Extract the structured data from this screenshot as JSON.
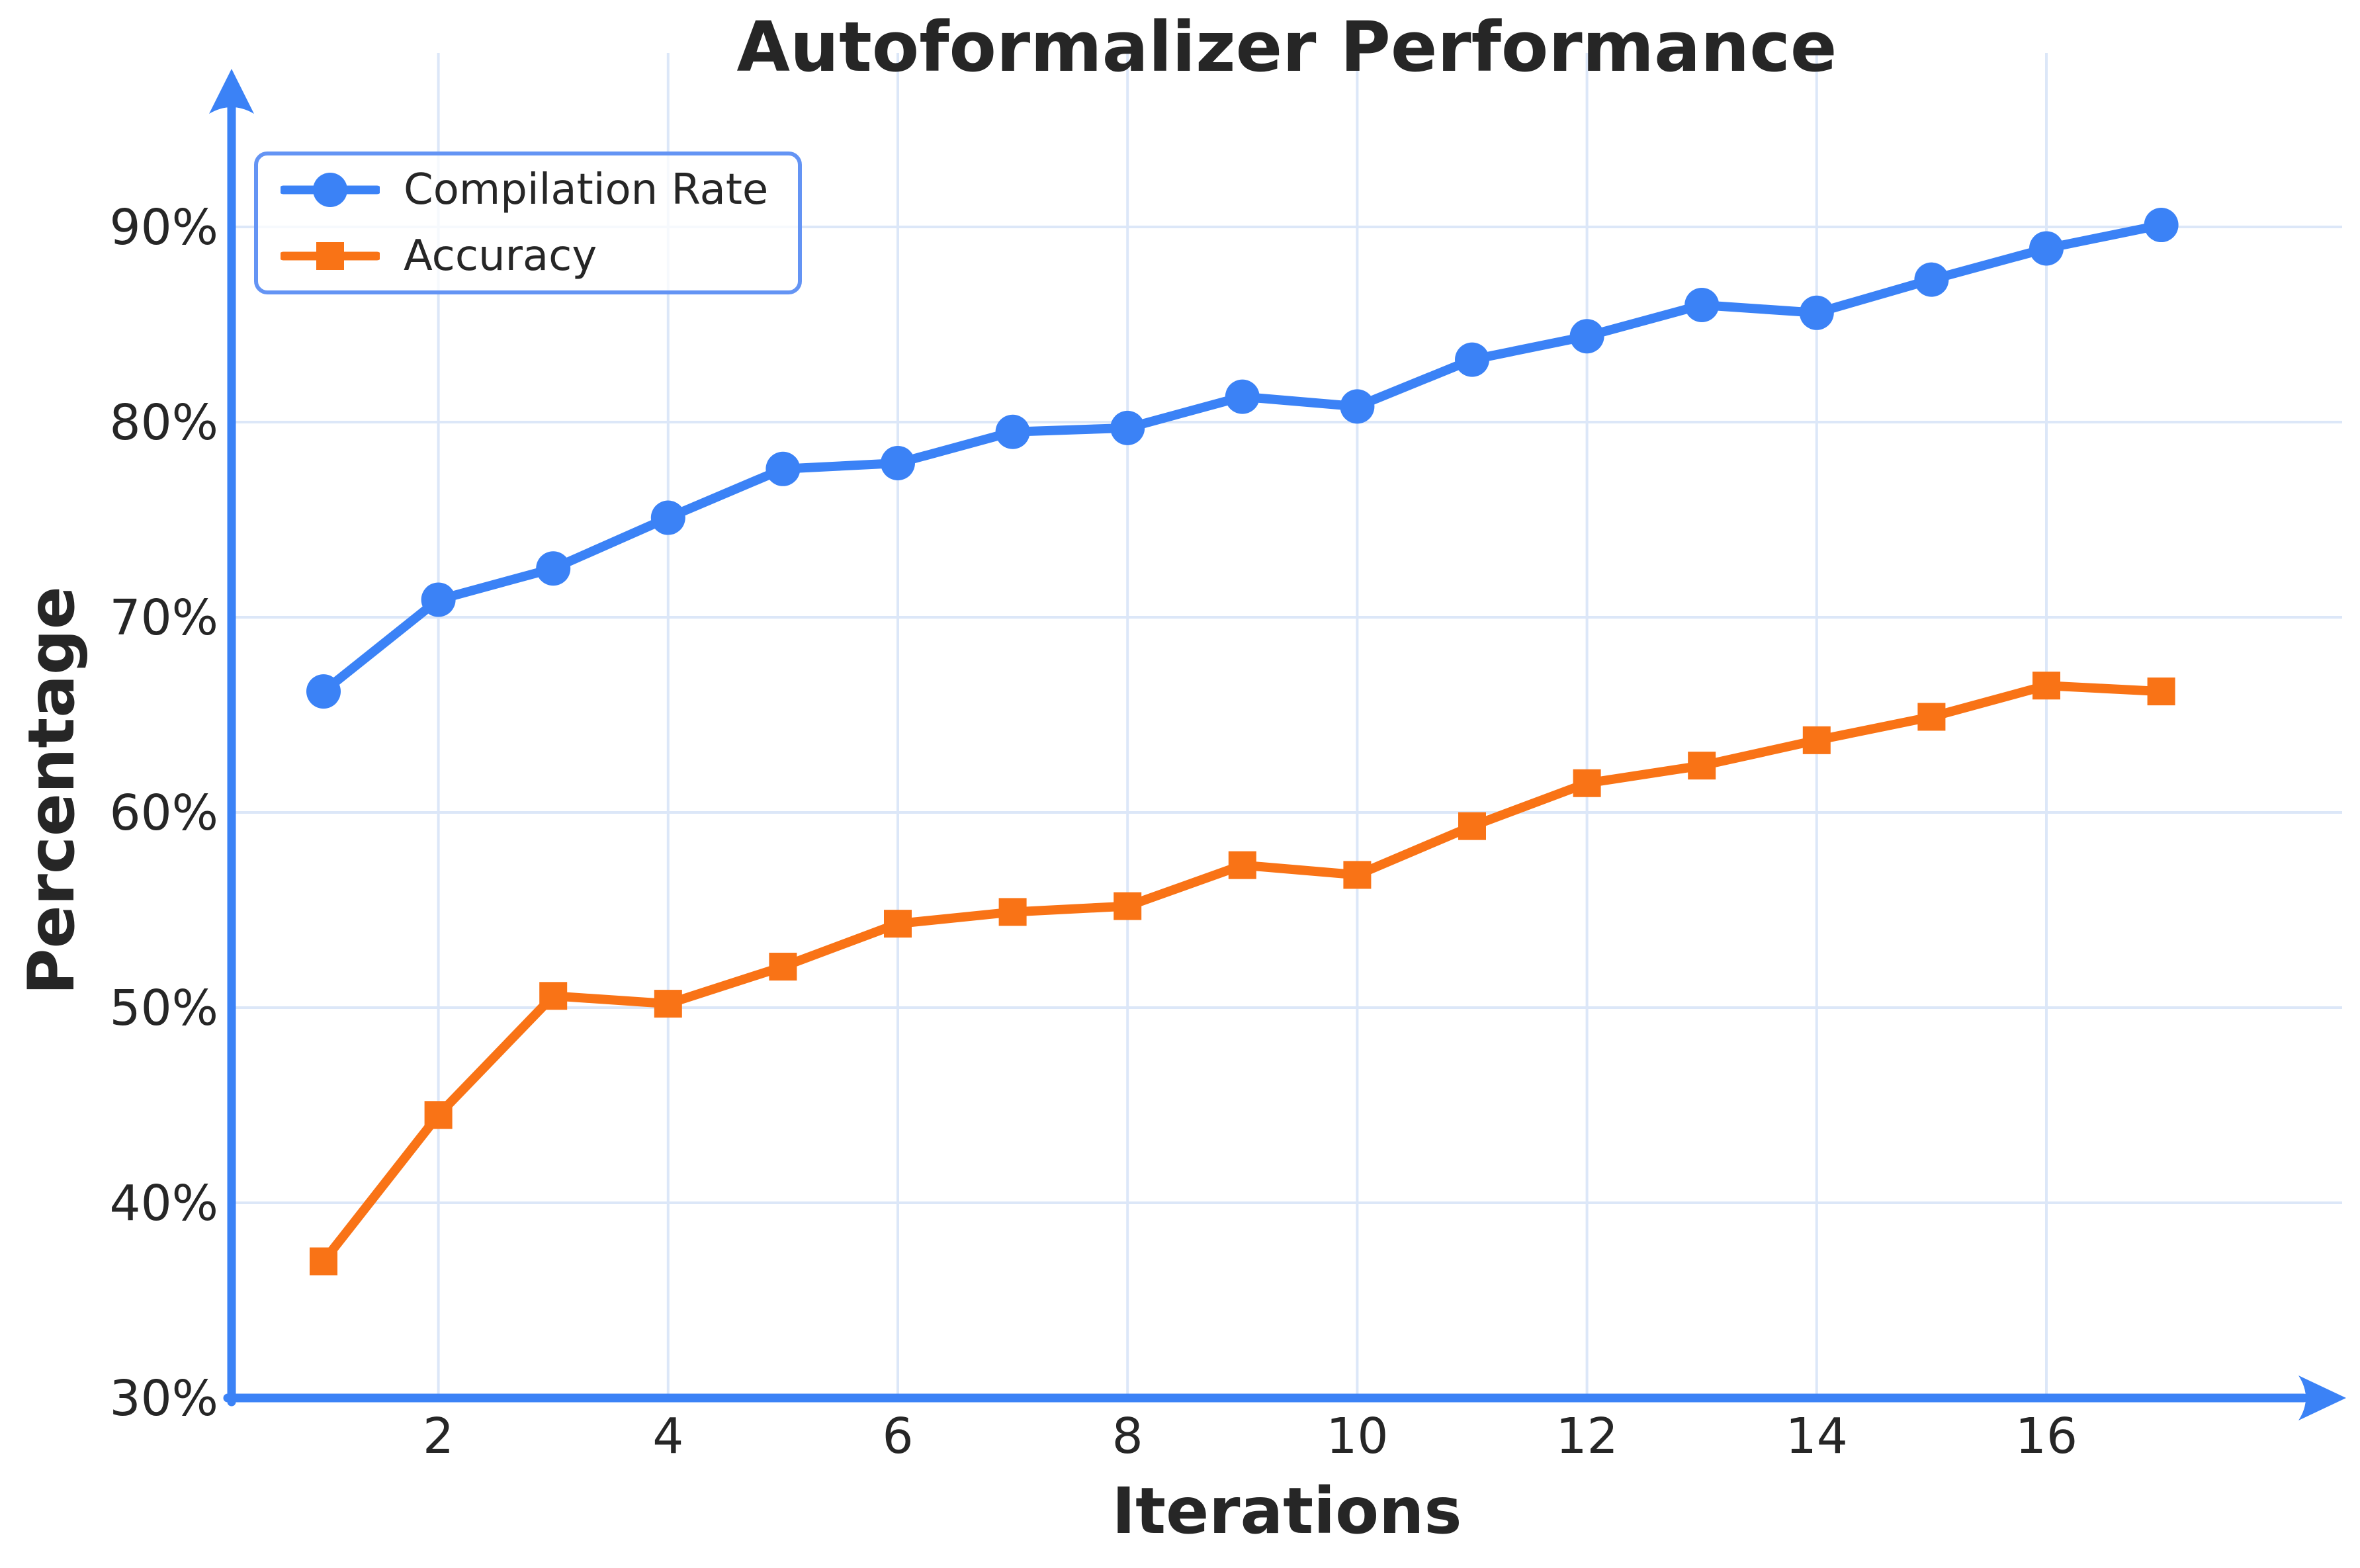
{
  "chart_data": {
    "type": "line",
    "title": "Autoformalizer Performance",
    "xlabel": "Iterations",
    "ylabel": "Percentage",
    "x": [
      1,
      2,
      3,
      4,
      5,
      6,
      7,
      8,
      9,
      10,
      11,
      12,
      13,
      14,
      15,
      16,
      17
    ],
    "series": [
      {
        "name": "Compilation Rate",
        "color": "#3b82f6",
        "marker": "circle",
        "values": [
          66.2,
          70.9,
          72.5,
          75.1,
          77.6,
          77.9,
          79.5,
          79.7,
          81.3,
          80.8,
          83.2,
          84.4,
          86.0,
          85.6,
          87.3,
          88.9,
          90.1
        ]
      },
      {
        "name": "Accuracy",
        "color": "#f97316",
        "marker": "square",
        "values": [
          37.0,
          44.5,
          50.6,
          50.2,
          52.1,
          54.3,
          54.9,
          55.2,
          57.3,
          56.8,
          59.3,
          61.5,
          62.4,
          63.7,
          64.9,
          66.5,
          66.2
        ]
      }
    ],
    "x_ticks": [
      2,
      4,
      6,
      8,
      10,
      12,
      14,
      16
    ],
    "y_ticks": [
      {
        "value": 30,
        "label": "30%"
      },
      {
        "value": 40,
        "label": "40%"
      },
      {
        "value": 50,
        "label": "50%"
      },
      {
        "value": 60,
        "label": "60%"
      },
      {
        "value": 70,
        "label": "70%"
      },
      {
        "value": 80,
        "label": "80%"
      },
      {
        "value": 90,
        "label": "90%"
      }
    ],
    "ylim": [
      30,
      98
    ],
    "xlim": [
      0.2,
      17.8
    ],
    "grid": true,
    "legend_position": "upper left"
  },
  "style": {
    "axis_color": "#3b82f6",
    "grid_color": "#dce7f8",
    "text_color": "#262626",
    "legend_border_color": "#6494f4",
    "background": "#ffffff"
  }
}
